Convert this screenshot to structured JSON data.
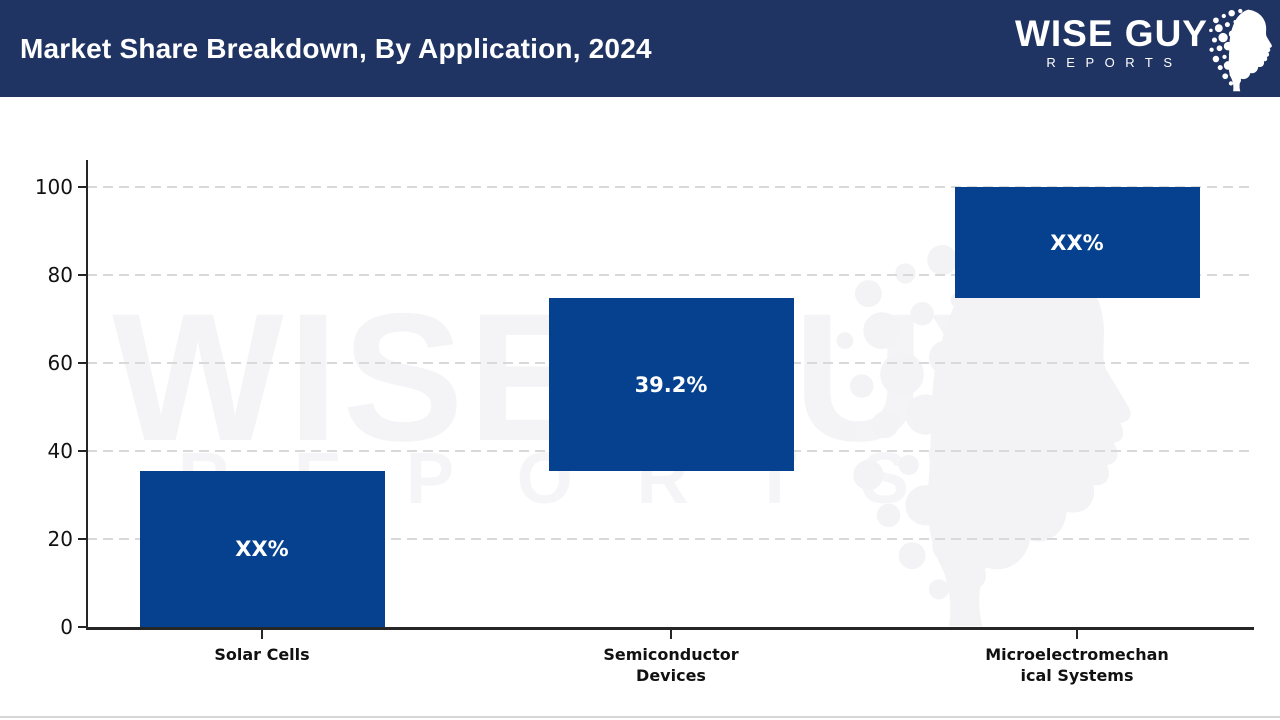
{
  "header": {
    "title": "Market Share Breakdown, By Application, 2024",
    "bg_color": "#203463",
    "logo": {
      "line1": "WISE GUY",
      "line2": "REPORTS"
    }
  },
  "watermark": {
    "line1": "WISE GUY",
    "line2": "R E P O R T S"
  },
  "chart_data": {
    "type": "bar",
    "variant": "waterfall",
    "title": "Market Share Breakdown, By Application, 2024",
    "categories": [
      "Solar Cells",
      "Semiconductor\nDevices",
      "Microelectromechan\nical Systems"
    ],
    "segments": [
      {
        "category": "Solar Cells",
        "from": 0,
        "to": 35.5,
        "label": "XX%"
      },
      {
        "category": "Semiconductor Devices",
        "from": 35.5,
        "to": 74.7,
        "label": "39.2%"
      },
      {
        "category": "Microelectromechanical Systems",
        "from": 74.7,
        "to": 100,
        "label": "XX%"
      }
    ],
    "yticks": [
      0,
      20,
      40,
      60,
      80,
      100
    ],
    "ylim": [
      0,
      106
    ],
    "xlabel": "",
    "ylabel": "",
    "bar_color": "#05418f",
    "grid_color": "#d9d9d9",
    "grid": "horizontal-dashed",
    "legend": "none"
  }
}
